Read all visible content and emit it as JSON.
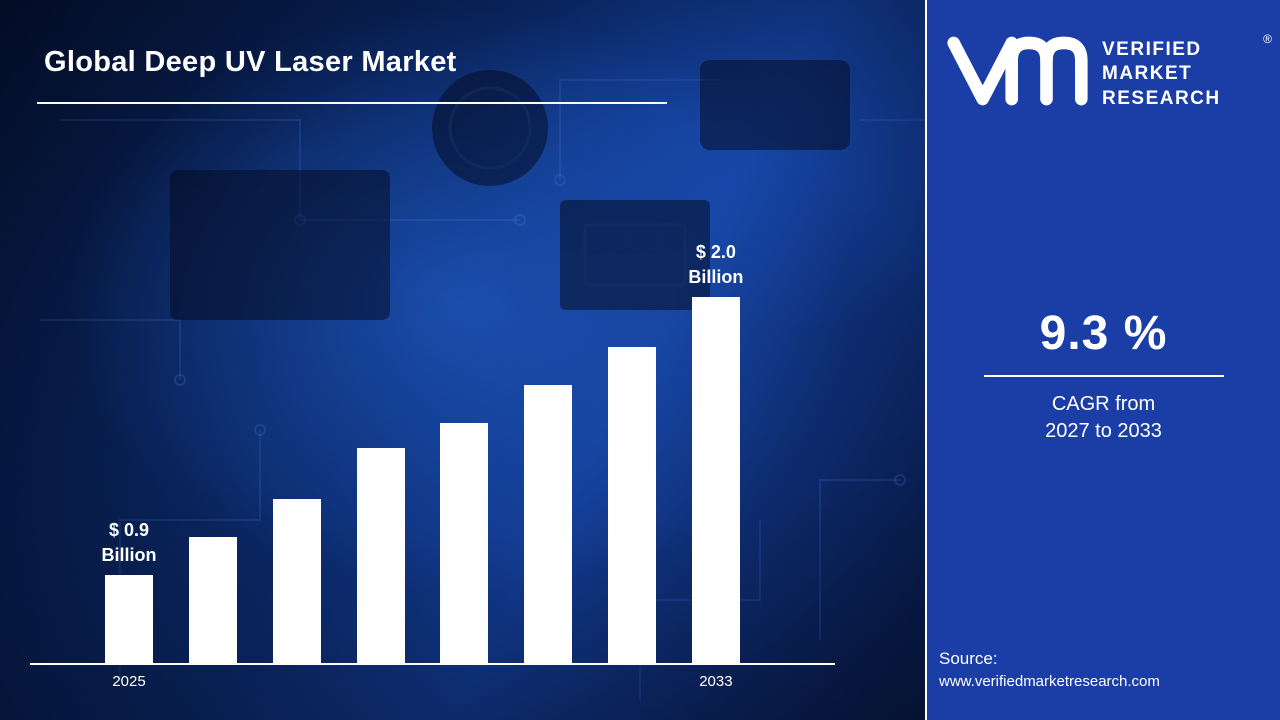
{
  "page": {
    "title": "Global Deep UV Laser Market"
  },
  "chart_data": {
    "type": "bar",
    "title": "Global Deep UV Laser Market",
    "categories": [
      "2025",
      "",
      "",
      "",
      "",
      "",
      "",
      "2033"
    ],
    "values": [
      0.9,
      1.05,
      1.2,
      1.4,
      1.5,
      1.65,
      1.8,
      2.0
    ],
    "unit": "USD Billion",
    "ylim": [
      0.55,
      2.0
    ],
    "grid": false,
    "legend": false,
    "bar_color": "#ffffff",
    "axis_color": "#ffffff",
    "value_labels": [
      {
        "index": 0,
        "lines": [
          "$ 0.9",
          "Billion"
        ]
      },
      {
        "index": 7,
        "lines": [
          "$ 2.0",
          "Billion"
        ]
      }
    ],
    "x_ticks": [
      {
        "index": 0,
        "label": "2025"
      },
      {
        "index": 7,
        "label": "2033"
      }
    ]
  },
  "sidebar": {
    "background_color": "#1b3da6",
    "logo": {
      "line1": "VERIFIED",
      "line2": "MARKET",
      "line3": "RESEARCH",
      "registered_mark": "®"
    },
    "cagr": {
      "value": "9.3 %",
      "caption_line1": "CAGR from",
      "caption_line2": "2027 to 2033"
    },
    "source": {
      "label": "Source:",
      "url": "www.verifiedmarketresearch.com"
    }
  },
  "colors": {
    "background_navy": "#071638",
    "accent_blue": "#2f6fe0",
    "text_white": "#ffffff"
  }
}
